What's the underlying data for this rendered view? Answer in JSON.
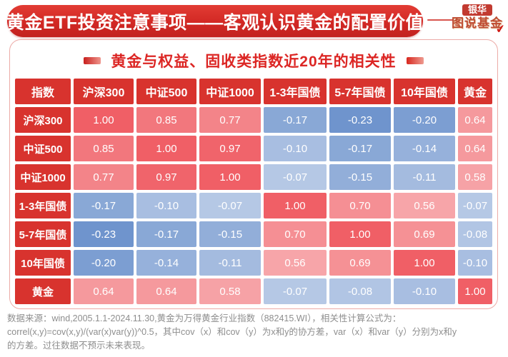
{
  "header": {
    "banner_title": "黄金ETF投资注意事项——客观认识黄金的配置价值",
    "logo": {
      "top": "银华",
      "bottom": "图说基金"
    }
  },
  "section_title": "黄金与权益、固收类指数近20年的相关性",
  "chart_data": {
    "type": "heatmap",
    "title": "黄金与权益、固收类指数近20年的相关性",
    "corner_label": "指数",
    "columns": [
      "沪深300",
      "中证500",
      "中证1000",
      "1-3年国债",
      "5-7年国债",
      "10年国债",
      "黄金"
    ],
    "rows": [
      "沪深300",
      "中证500",
      "中证1000",
      "1-3年国债",
      "5-7年国债",
      "10年国债",
      "黄金"
    ],
    "values": [
      [
        1.0,
        0.85,
        0.77,
        -0.17,
        -0.23,
        -0.2,
        0.64
      ],
      [
        0.85,
        1.0,
        0.97,
        -0.1,
        -0.17,
        -0.14,
        0.64
      ],
      [
        0.77,
        0.97,
        1.0,
        -0.07,
        -0.15,
        -0.11,
        0.58
      ],
      [
        -0.17,
        -0.1,
        -0.07,
        1.0,
        0.7,
        0.56,
        -0.07
      ],
      [
        -0.23,
        -0.17,
        -0.15,
        0.7,
        1.0,
        0.69,
        -0.08
      ],
      [
        -0.2,
        -0.14,
        -0.11,
        0.56,
        0.69,
        1.0,
        -0.1
      ],
      [
        0.64,
        0.64,
        0.58,
        -0.07,
        -0.08,
        -0.1,
        1.0
      ]
    ],
    "value_decimals": 2,
    "colorscale": {
      "header_bg": "#d8332e",
      "positive_max": "#f05f66",
      "negative_max": "#6f94cd",
      "negative_range": 0.23,
      "negative_floor": 0.3
    },
    "legend": "red = positive correlation, blue = negative correlation"
  },
  "footer": {
    "lines": [
      "数据来源：wind,2005.1.1-2024.11.30,黄金为万得黄金行业指数（882415.WI），相关性计算公式为：",
      "correl(x,y)=cov(x,y)/(var(x)var(y))^0.5，其中cov（x）和cov（y）为x和y的协方差，var（x）和var（y）分别为x和y",
      "的方差。过往数据不预示未来表现。"
    ]
  },
  "colors": {
    "banner_red": "#d22824",
    "title_red": "#dc2624",
    "panel_border": "#ecaba7",
    "footer_text": "#8e8e8e"
  }
}
